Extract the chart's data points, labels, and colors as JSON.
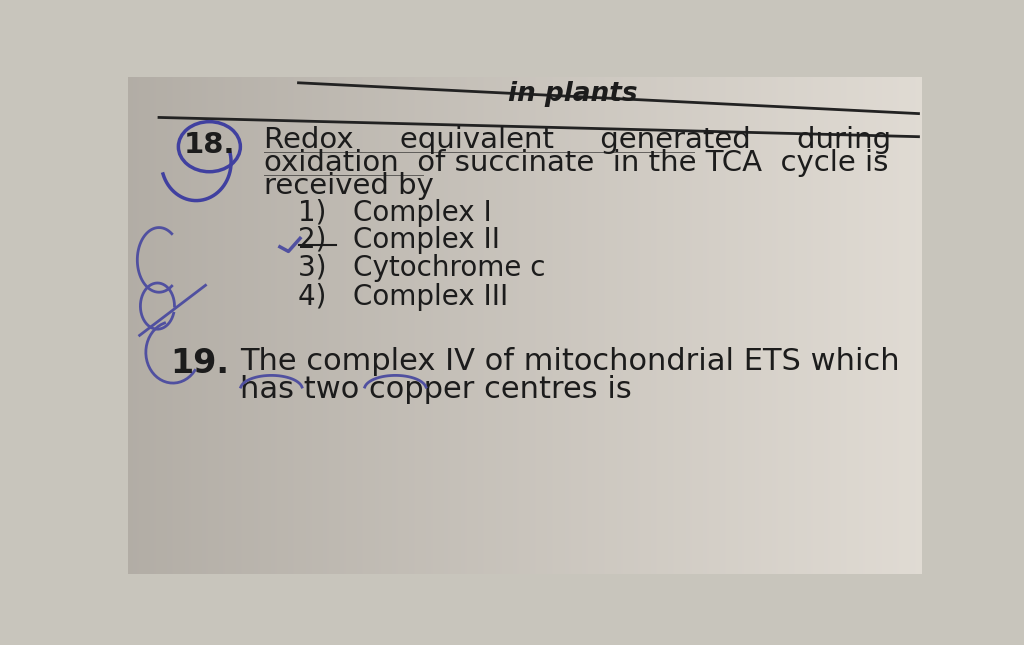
{
  "bg_color_left": "#b8b4ac",
  "bg_color_right": "#d8d4d0",
  "top_header_text": "in plants",
  "q18_text_line1": "Redox     equivalent     generated     during",
  "q18_text_line2": "oxidation  of succinate  in the TCA  cycle is",
  "q18_text_line3": "received by",
  "opt1": "1)   Complex I",
  "opt2": "2)   Complex II",
  "opt3": "3)   Cytochrome c",
  "opt4": "4)   Complex III",
  "q19_num": "19.",
  "q19_line1": "The complex IV of mitochondrial ETS which",
  "q19_line2": "has two copper centres is",
  "text_color": "#1c1c1c",
  "circle_color": "#4040a0",
  "line_color": "#222222",
  "annot_color": "#5050a0",
  "font_size_q": 21,
  "font_size_opt": 20,
  "font_size_q19": 22,
  "font_size_header": 19
}
